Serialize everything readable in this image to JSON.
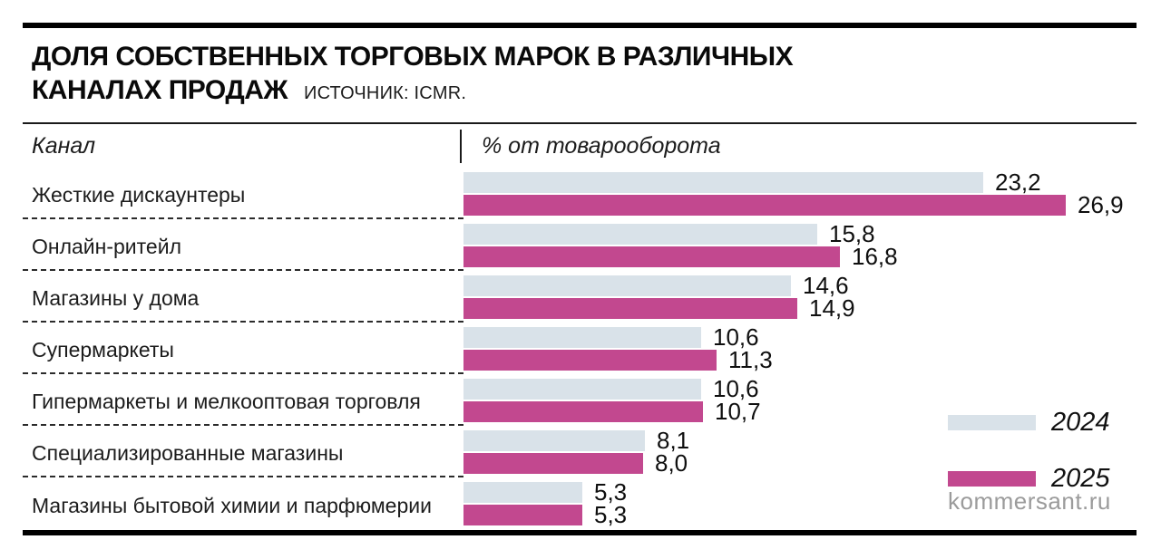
{
  "header": {
    "title_line1": "ДОЛЯ СОБСТВЕННЫХ ТОРГОВЫХ МАРОК В РАЗЛИЧНЫХ",
    "title_line2": "КАНАЛАХ ПРОДАЖ",
    "source": "ИСТОЧНИК: ICMR."
  },
  "table_header": {
    "col1": "Канал",
    "col2": "% от товарооборота"
  },
  "chart_data": {
    "type": "bar",
    "orientation": "horizontal",
    "title": "ДОЛЯ СОБСТВЕННЫХ ТОРГОВЫХ МАРОК В РАЗЛИЧНЫХ КАНАЛАХ ПРОДАЖ",
    "xlabel": "% от товарооборота",
    "source": "ИСТОЧНИК: ICMR.",
    "xlim": [
      0,
      29.7
    ],
    "grid": false,
    "legend_position": "bottom-right",
    "categories": [
      "Жесткие дискаунтеры",
      "Онлайн-ритейл",
      "Магазины у дома",
      "Супермаркеты",
      "Гипермаркеты и мелкооптовая торговля",
      "Специализированные магазины",
      "Магазины бытовой химии и парфюмерии"
    ],
    "series": [
      {
        "name": "2024",
        "color": "#d9e2e9",
        "values": [
          23.2,
          15.8,
          14.6,
          10.6,
          10.6,
          8.1,
          5.3
        ],
        "labels": [
          "23,2",
          "15,8",
          "14,6",
          "10,6",
          "10,6",
          "8,1",
          "5,3"
        ]
      },
      {
        "name": "2025",
        "color": "#c2488f",
        "values": [
          26.9,
          16.8,
          14.9,
          11.3,
          10.7,
          8.0,
          5.3
        ],
        "labels": [
          "26,9",
          "16,8",
          "14,9",
          "11,3",
          "10,7",
          "8,0",
          "5,3"
        ]
      }
    ]
  },
  "legend": {
    "items": [
      {
        "label": "2024",
        "color": "#d9e2e9"
      },
      {
        "label": "2025",
        "color": "#c2488f"
      }
    ]
  },
  "footer": {
    "site": "kommersant.ru"
  },
  "colors": {
    "bar_2024": "#d9e2e9",
    "bar_2025": "#c2488f",
    "rules": "#000000",
    "credit_gray": "#9b9b9b"
  }
}
